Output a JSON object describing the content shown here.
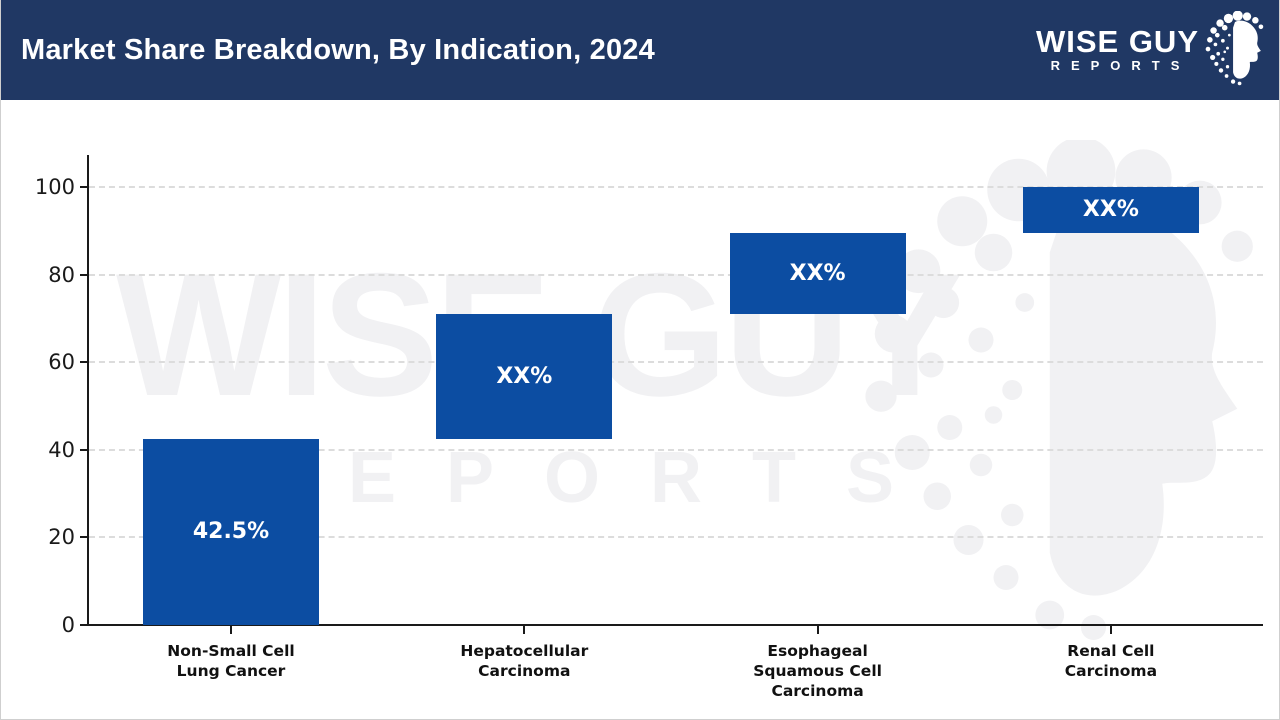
{
  "header": {
    "title": "Market Share Breakdown, By Indication, 2024",
    "logo": {
      "name_top": "WISE GUY",
      "name_bottom": "REPORTS"
    }
  },
  "watermark": {
    "text_top": "WISE GUY",
    "text_bottom": "REPORTS"
  },
  "colors": {
    "header_bg": "#203864",
    "bar_blue": "#0C4DA2",
    "grid": "#DCDCDC",
    "axis": "#1a1a1a",
    "watermark": "#F1F1F3",
    "label_text": "#FFFFFF",
    "tick_text": "#1a1a1a"
  },
  "chart_data": {
    "type": "bar",
    "variant": "waterfall",
    "title": "Market Share Breakdown, By Indication, 2024",
    "categories": [
      [
        "Non-Small Cell",
        "Lung Cancer"
      ],
      [
        "Hepatocellular",
        "Carcinoma"
      ],
      [
        "Esophageal",
        "Squamous Cell",
        "Carcinoma"
      ],
      [
        "Renal Cell",
        "Carcinoma"
      ]
    ],
    "segments": [
      {
        "start": 0,
        "end": 42.5,
        "label": "42.5%"
      },
      {
        "start": 42.5,
        "end": 71,
        "label": "XX%"
      },
      {
        "start": 71,
        "end": 89.5,
        "label": "XX%"
      },
      {
        "start": 89.5,
        "end": 100,
        "label": "XX%"
      }
    ],
    "bar_color": "#0C4DA2",
    "ylim": [
      0,
      100
    ],
    "yticks": [
      0,
      20,
      40,
      60,
      80,
      100
    ],
    "xlabel": "",
    "ylabel": "",
    "grid": "horizontal-dashed",
    "legend": "none"
  }
}
